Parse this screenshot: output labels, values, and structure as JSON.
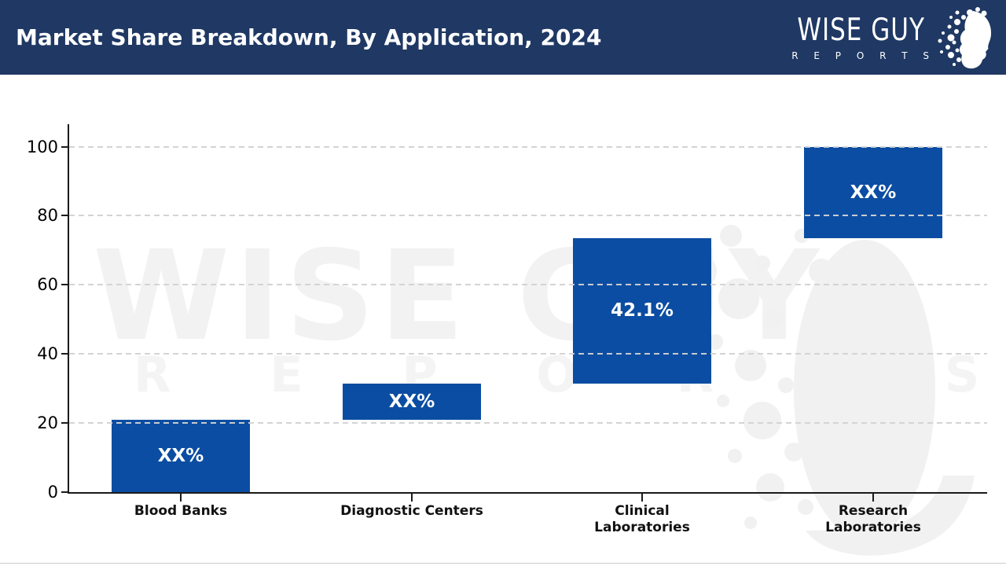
{
  "header": {
    "title": "Market Share Breakdown, By Application, 2024",
    "logo": {
      "name_top": "WISE GUY",
      "name_bottom": "R E P O R T S"
    }
  },
  "watermark": {
    "line1": "WISE GUY",
    "line2": "R E P O R T S"
  },
  "chart_data": {
    "type": "bar",
    "subtype": "floating-waterfall-segments",
    "title": "Market Share Breakdown, By Application, 2024",
    "categories": [
      "Blood Banks",
      "Diagnostic Centers",
      "Clinical Laboratories",
      "Research Laboratories"
    ],
    "xtick_labels": [
      "Blood Banks",
      "Diagnostic Centers",
      "Clinical\nLaboratories",
      "Research\nLaboratories"
    ],
    "segments": [
      [
        0,
        21
      ],
      [
        21,
        31.5
      ],
      [
        31.5,
        73.6
      ],
      [
        73.6,
        100
      ]
    ],
    "values": [
      21,
      10.5,
      42.1,
      26.4
    ],
    "bar_labels": [
      "XX%",
      "XX%",
      "42.1%",
      "XX%"
    ],
    "ylim": [
      0,
      100
    ],
    "yticks": [
      0,
      20,
      40,
      60,
      80,
      100
    ],
    "grid": "horizontal-dashed",
    "legend": "none",
    "bar_color": "#0b4da2",
    "bar_label_color": "#ffffff",
    "axis_color": "#1a1a1a",
    "grid_color": "#d2d2d2"
  },
  "colors": {
    "header_bg": "#1f3864",
    "bar": "#0b4da2",
    "watermark": "#f2f2f2",
    "bottom_line": "#cccccc"
  }
}
